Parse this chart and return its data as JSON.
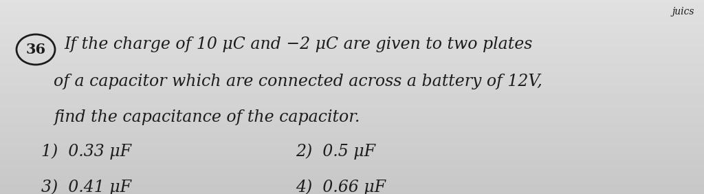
{
  "background_color": "#cdc8c0",
  "question_number": "36",
  "line1": "If the charge of 10 μC and −2 μC are given to two plates",
  "line2": "of a capacitor which are connected across a battery of 12V,",
  "line3": "find the capacitance of the capacitor.",
  "opt1": "1)  0.33 μF",
  "opt2": "2)  0.5 μF",
  "opt3": "3)  0.41 μF",
  "opt4": "4)  0.66 μF",
  "corner_text": "juics",
  "text_color": "#1c1c1c",
  "font_size_main": 17,
  "font_size_options": 17,
  "font_size_number": 15
}
